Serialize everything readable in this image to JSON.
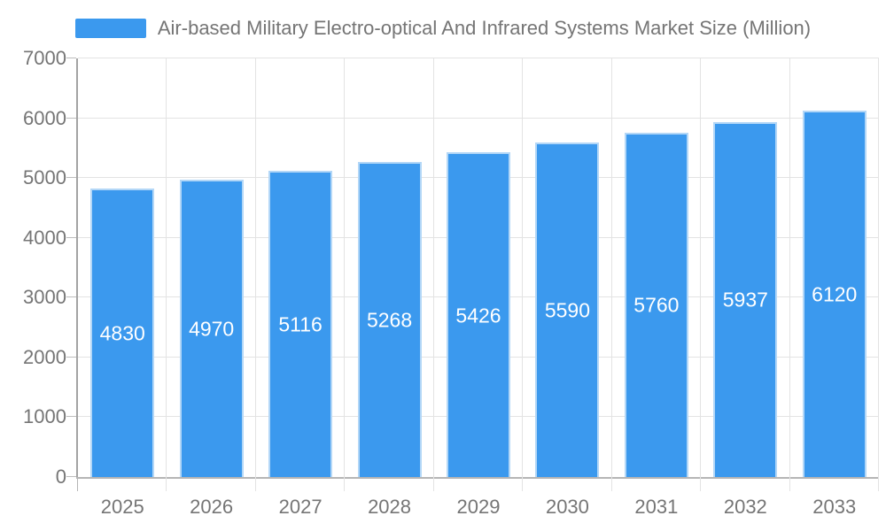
{
  "chart_data": {
    "type": "bar",
    "title": "Air-based Military Electro-optical And Infrared Systems Market Size (Million)",
    "categories": [
      "2025",
      "2026",
      "2027",
      "2028",
      "2029",
      "2030",
      "2031",
      "2032",
      "2033"
    ],
    "series": [
      {
        "name": "Air-based Military Electro-optical And Infrared Systems Market Size (Million)",
        "values": [
          4830,
          4970,
          5116,
          5268,
          5426,
          5590,
          5760,
          5937,
          6120
        ]
      }
    ],
    "xlabel": "",
    "ylabel": "",
    "ylim": [
      0,
      7000
    ],
    "yticks": [
      0,
      1000,
      2000,
      3000,
      4000,
      5000,
      6000,
      7000
    ],
    "grid": true,
    "legend_position": "top-center",
    "bar_value_labels_shown": true
  },
  "colors": {
    "background": "#ffffff",
    "bar_fill": "#3b99ee",
    "bar_border": "#b3d7f7",
    "bar_label_text": "#ffffff",
    "axis_text": "#757575",
    "legend_text": "#757575",
    "gridline": "#e3e3e3",
    "axis_line": "#a3a3a3",
    "baseline": "#b5b5b5",
    "y_tick_mark": "#bdbdbd",
    "x_tick_mark": "#e3e3e3"
  }
}
